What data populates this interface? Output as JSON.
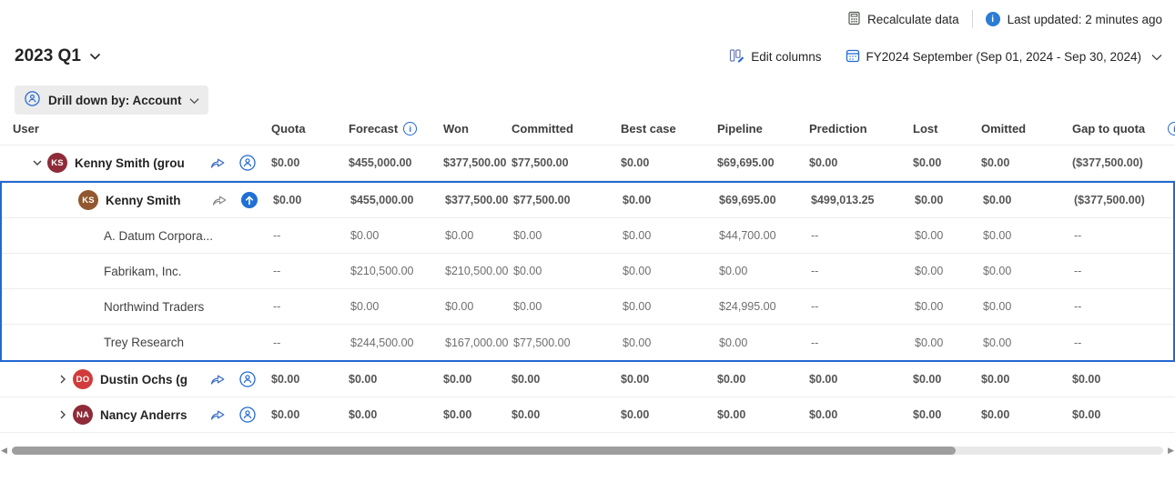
{
  "topbar": {
    "recalculate_label": "Recalculate data",
    "last_updated": "Last updated: 2 minutes ago"
  },
  "toolbar": {
    "period_label": "2023 Q1",
    "edit_columns_label": "Edit columns",
    "fiscal_period_label": "FY2024 September (Sep 01, 2024 - Sep 30, 2024)"
  },
  "filter_chip": {
    "label": "Drill down by: Account"
  },
  "table": {
    "columns": [
      "User",
      "Quota",
      "Forecast",
      "Won",
      "Committed",
      "Best case",
      "Pipeline",
      "Prediction",
      "Lost",
      "Omitted",
      "Gap to quota"
    ],
    "info_icon_columns": [
      "Forecast",
      "Gap to quota"
    ],
    "rows": [
      {
        "name": "Kenny Smith (grou",
        "kind": "group",
        "level": 0,
        "initials": "KS",
        "avatar_color": "#8f2b38",
        "expand": "down",
        "selected": false,
        "actions": [
          "share-icon",
          "drill-down-icon"
        ],
        "values": [
          "$0.00",
          "$455,000.00",
          "$377,500.00",
          "$77,500.00",
          "$0.00",
          "$69,695.00",
          "$0.00",
          "$0.00",
          "$0.00",
          "($377,500.00)"
        ]
      },
      {
        "name": "Kenny Smith",
        "kind": "user",
        "level": 1,
        "initials": "KS",
        "avatar_color": "#91582f",
        "expand": null,
        "selected": true,
        "actions": [
          "share-icon",
          "drill-up-icon"
        ],
        "values": [
          "$0.00",
          "$455,000.00",
          "$377,500.00",
          "$77,500.00",
          "$0.00",
          "$69,695.00",
          "$499,013.25",
          "$0.00",
          "$0.00",
          "($377,500.00)"
        ]
      },
      {
        "name": "A. Datum Corpora...",
        "kind": "account",
        "level": 2,
        "selected": true,
        "values": [
          "--",
          "$0.00",
          "$0.00",
          "$0.00",
          "$0.00",
          "$44,700.00",
          "--",
          "$0.00",
          "$0.00",
          "--"
        ]
      },
      {
        "name": "Fabrikam, Inc.",
        "kind": "account",
        "level": 2,
        "selected": true,
        "values": [
          "--",
          "$210,500.00",
          "$210,500.00",
          "$0.00",
          "$0.00",
          "$0.00",
          "--",
          "$0.00",
          "$0.00",
          "--"
        ]
      },
      {
        "name": "Northwind Traders",
        "kind": "account",
        "level": 2,
        "selected": true,
        "values": [
          "--",
          "$0.00",
          "$0.00",
          "$0.00",
          "$0.00",
          "$24,995.00",
          "--",
          "$0.00",
          "$0.00",
          "--"
        ]
      },
      {
        "name": "Trey Research",
        "kind": "account",
        "level": 2,
        "selected": true,
        "values": [
          "--",
          "$244,500.00",
          "$167,000.00",
          "$77,500.00",
          "$0.00",
          "$0.00",
          "--",
          "$0.00",
          "$0.00",
          "--"
        ]
      },
      {
        "name": "Dustin Ochs (g",
        "kind": "group",
        "level": 1,
        "initials": "DO",
        "avatar_color": "#d23b3b",
        "expand": "right",
        "selected": false,
        "actions": [
          "share-icon",
          "drill-down-icon"
        ],
        "values": [
          "$0.00",
          "$0.00",
          "$0.00",
          "$0.00",
          "$0.00",
          "$0.00",
          "$0.00",
          "$0.00",
          "$0.00",
          "$0.00"
        ]
      },
      {
        "name": "Nancy Anderrs",
        "kind": "group",
        "level": 1,
        "initials": "NA",
        "avatar_color": "#8f2b38",
        "expand": "right",
        "selected": false,
        "actions": [
          "share-icon",
          "drill-down-icon"
        ],
        "values": [
          "$0.00",
          "$0.00",
          "$0.00",
          "$0.00",
          "$0.00",
          "$0.00",
          "$0.00",
          "$0.00",
          "$0.00",
          "$0.00"
        ]
      }
    ]
  },
  "colors": {
    "accent": "#2368d2",
    "selection_border": "#2368d2",
    "info_blue": "#2b7cd3"
  }
}
